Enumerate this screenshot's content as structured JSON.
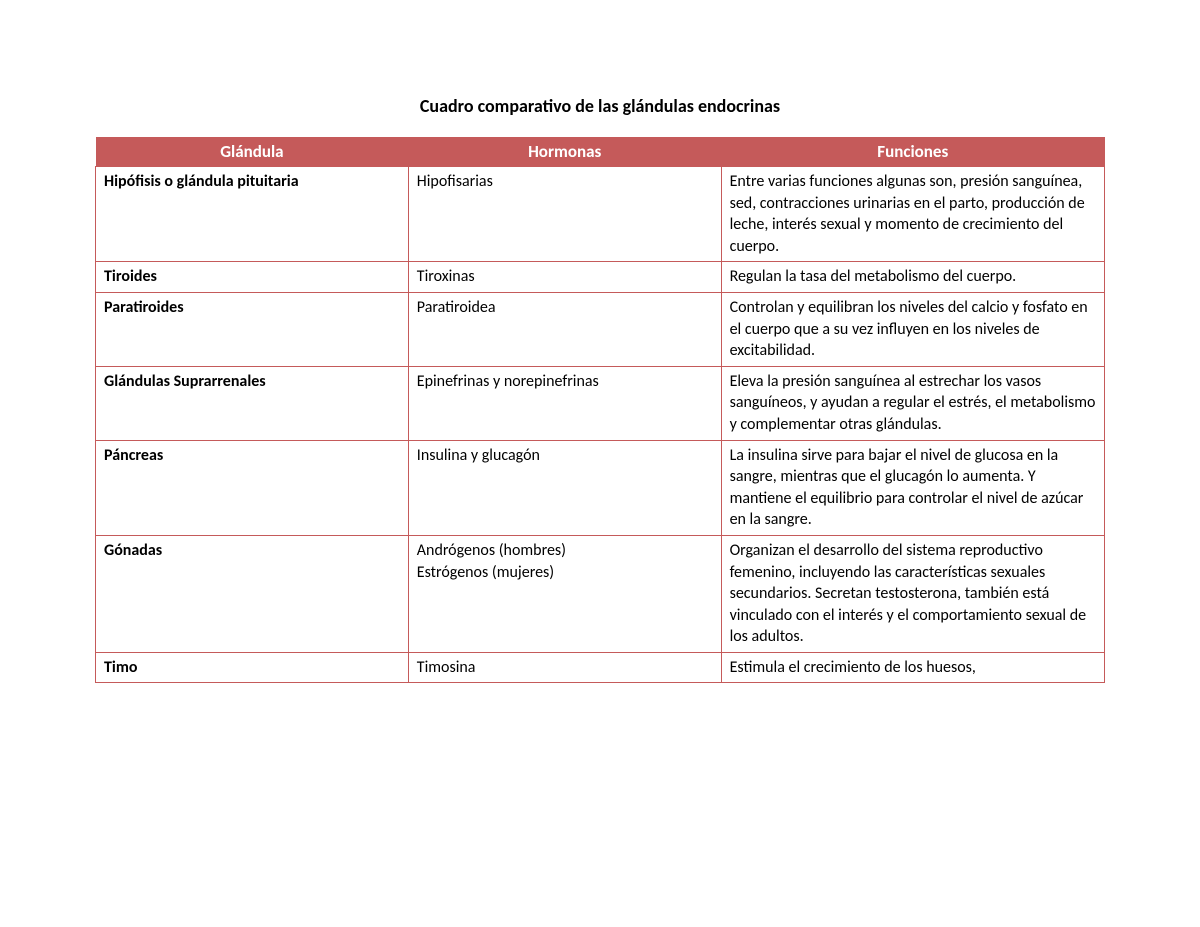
{
  "title": "Cuadro comparativo de las glándulas endocrinas",
  "columns": [
    "Glándula",
    "Hormonas",
    "Funciones"
  ],
  "colors": {
    "header_bg": "#c55a5a",
    "header_text": "#ffffff",
    "border": "#c55a5a",
    "body_bg": "#ffffff",
    "text": "#000000"
  },
  "column_widths": [
    "31%",
    "31%",
    "38%"
  ],
  "fontsize_title": 18,
  "fontsize_header": 17,
  "fontsize_cell": 16,
  "rows": [
    {
      "glandula": "Hipófisis o glándula pituitaria",
      "hormonas": "Hipofisarias",
      "funciones": "Entre varias funciones algunas son, presión sanguínea, sed, contracciones urinarias en el parto, producción de leche, interés sexual y momento de crecimiento del cuerpo."
    },
    {
      "glandula": "Tiroides",
      "hormonas": "Tiroxinas",
      "funciones": "Regulan la tasa del metabolismo del cuerpo."
    },
    {
      "glandula": "Paratiroides",
      "hormonas": "Paratiroidea",
      "funciones": "Controlan y equilibran los niveles del calcio y fosfato en el cuerpo que a su vez influyen en los niveles de excitabilidad."
    },
    {
      "glandula": "Glándulas Suprarrenales",
      "hormonas": "Epinefrinas y norepinefrinas",
      "funciones": "Eleva la presión sanguínea al estrechar los vasos sanguíneos, y ayudan a regular el estrés, el metabolismo y complementar otras glándulas."
    },
    {
      "glandula": "Páncreas",
      "hormonas": "Insulina y glucagón",
      "funciones": "La insulina sirve para bajar el nivel de glucosa en la sangre, mientras que el glucagón lo aumenta. Y mantiene el equilibrio para controlar el nivel de azúcar en la sangre."
    },
    {
      "glandula": "Gónadas",
      "hormonas": "Andrógenos (hombres)\nEstrógenos (mujeres)",
      "funciones": "Organizan el desarrollo del sistema reproductivo femenino, incluyendo las características sexuales secundarios. Secretan testosterona, también está vinculado con el interés y el comportamiento sexual de los adultos."
    },
    {
      "glandula": "Timo",
      "hormonas": "Timosina",
      "funciones": "Estimula el crecimiento de los huesos,"
    }
  ]
}
